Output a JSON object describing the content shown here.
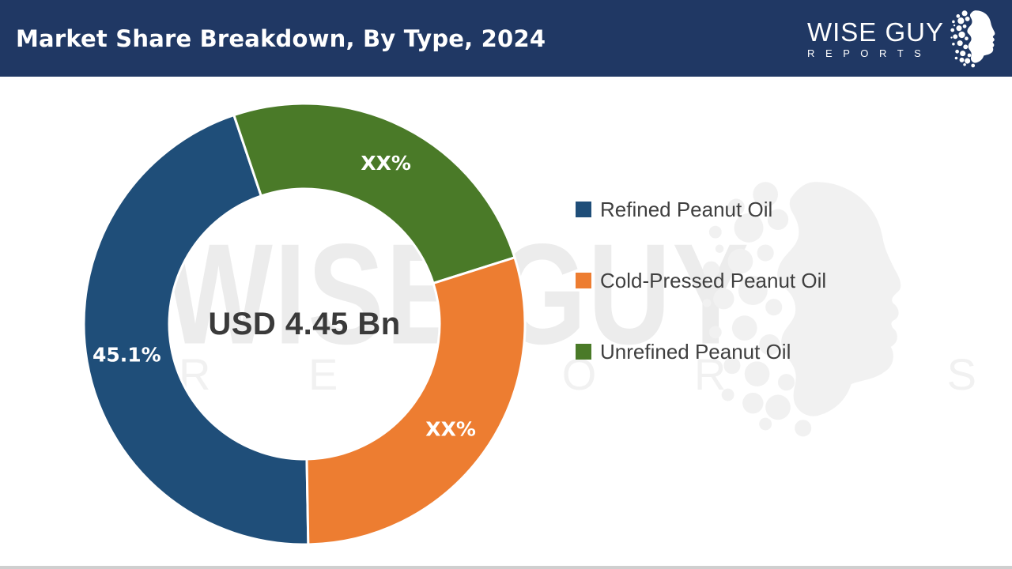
{
  "header": {
    "title": "Market Share Breakdown, By Type, 2024",
    "bg_color": "#203864",
    "logo": {
      "line1": "WISE GUY",
      "line2": "R E P O R T S"
    }
  },
  "watermark": {
    "line1": "WISE GUY",
    "line2": "R E P O R T S"
  },
  "legend": {
    "items": [
      {
        "label": "Refined Peanut Oil",
        "color": "#1F4E79"
      },
      {
        "label": "Cold-Pressed Peanut Oil",
        "color": "#ED7D31"
      },
      {
        "label": "Unrefined Peanut Oil",
        "color": "#4A7A28"
      }
    ]
  },
  "chart_data": {
    "type": "pie",
    "donut": true,
    "title": "Market Share Breakdown, By Type, 2024",
    "center_label": "USD 4.45 Bn",
    "start_angle_deg": 89,
    "slices": [
      {
        "name": "Refined Peanut Oil",
        "display_label": "45.1%",
        "value": 45.1,
        "color": "#1F4E79"
      },
      {
        "name": "Unrefined Peanut Oil",
        "display_label": "XX%",
        "value": 25.3,
        "color": "#4A7A28"
      },
      {
        "name": "Cold-Pressed Peanut Oil",
        "display_label": "XX%",
        "value": 29.6,
        "color": "#ED7D31"
      }
    ],
    "colors": {
      "slice_label": "#FFFFFF",
      "center_label": "#3A3A3A"
    }
  }
}
